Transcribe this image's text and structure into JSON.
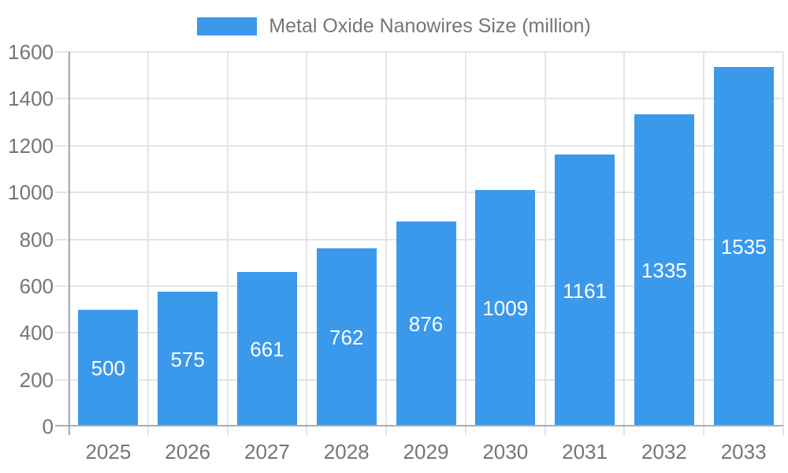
{
  "legend": {
    "items": [
      {
        "label": "Metal Oxide Nanowires Size (million)",
        "color": "#3B99EC"
      }
    ]
  },
  "chart_data": {
    "type": "bar",
    "title": "Metal Oxide Nanowires Size (million)",
    "categories": [
      "2025",
      "2026",
      "2027",
      "2028",
      "2029",
      "2030",
      "2031",
      "2032",
      "2033"
    ],
    "values": [
      500,
      575,
      661,
      762,
      876,
      1009,
      1161,
      1335,
      1535
    ],
    "series": [
      {
        "name": "Metal Oxide Nanowires Size (million)",
        "values": [
          500,
          575,
          661,
          762,
          876,
          1009,
          1161,
          1335,
          1535
        ]
      }
    ],
    "xlabel": "",
    "ylabel": "",
    "ylim": [
      0,
      1600
    ],
    "yticks": [
      0,
      200,
      400,
      600,
      800,
      1000,
      1200,
      1400,
      1600
    ],
    "grid": true,
    "legend_position": "top",
    "value_label_position": "inside-center",
    "colors": {
      "bar": "#3B99EC",
      "text": "#757575",
      "value_label": "#FFFFFF",
      "gridline": "#E4E4E4",
      "axis": "#ADADAD",
      "background": "#FFFFFF"
    }
  }
}
